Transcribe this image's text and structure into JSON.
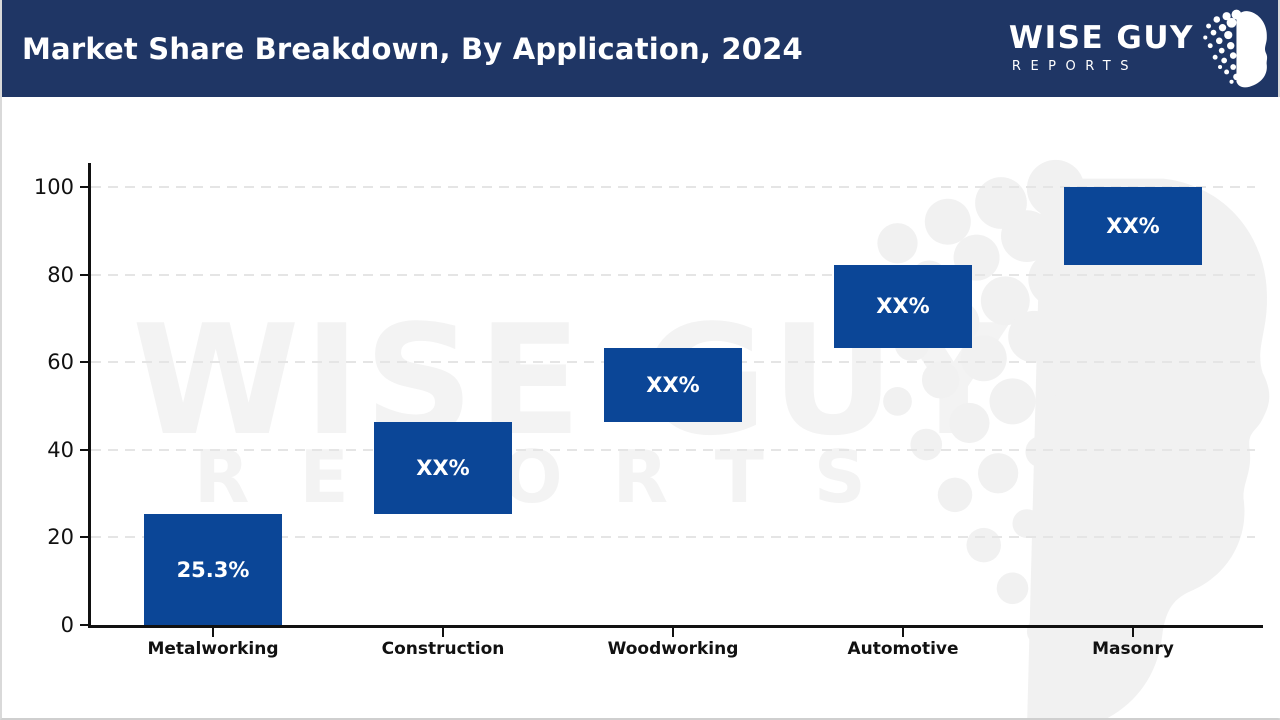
{
  "header": {
    "title": "Market Share Breakdown, By Application, 2024",
    "background": "#1f3665"
  },
  "logo": {
    "name": "WISE GUY",
    "subtitle": "REPORTS"
  },
  "watermark": {
    "line1": "WISE GUY",
    "line2": "REPORTS"
  },
  "chart_data": {
    "type": "bar",
    "subtype": "waterfall",
    "title": "Market Share Breakdown, By Application, 2024",
    "categories": [
      "Metalworking",
      "Construction",
      "Woodworking",
      "Automotive",
      "Masonry"
    ],
    "segments": [
      {
        "category": "Metalworking",
        "start": 0,
        "end": 25.3,
        "label": "25.3%"
      },
      {
        "category": "Construction",
        "start": 25.3,
        "end": 46.3,
        "label": "XX%"
      },
      {
        "category": "Woodworking",
        "start": 46.3,
        "end": 63.3,
        "label": "XX%"
      },
      {
        "category": "Automotive",
        "start": 63.3,
        "end": 82.3,
        "label": "XX%"
      },
      {
        "category": "Masonry",
        "start": 82.3,
        "end": 100,
        "label": "XX%"
      }
    ],
    "ylim": [
      0,
      100
    ],
    "yticks": [
      0,
      20,
      40,
      60,
      80,
      100
    ],
    "xlabel": "",
    "ylabel": "",
    "grid": true,
    "legend": false,
    "bar_color": "#0b4697",
    "bar_label_color": "#ffffff",
    "grid_color": "#e5e5e5",
    "axis_color": "#111111"
  }
}
